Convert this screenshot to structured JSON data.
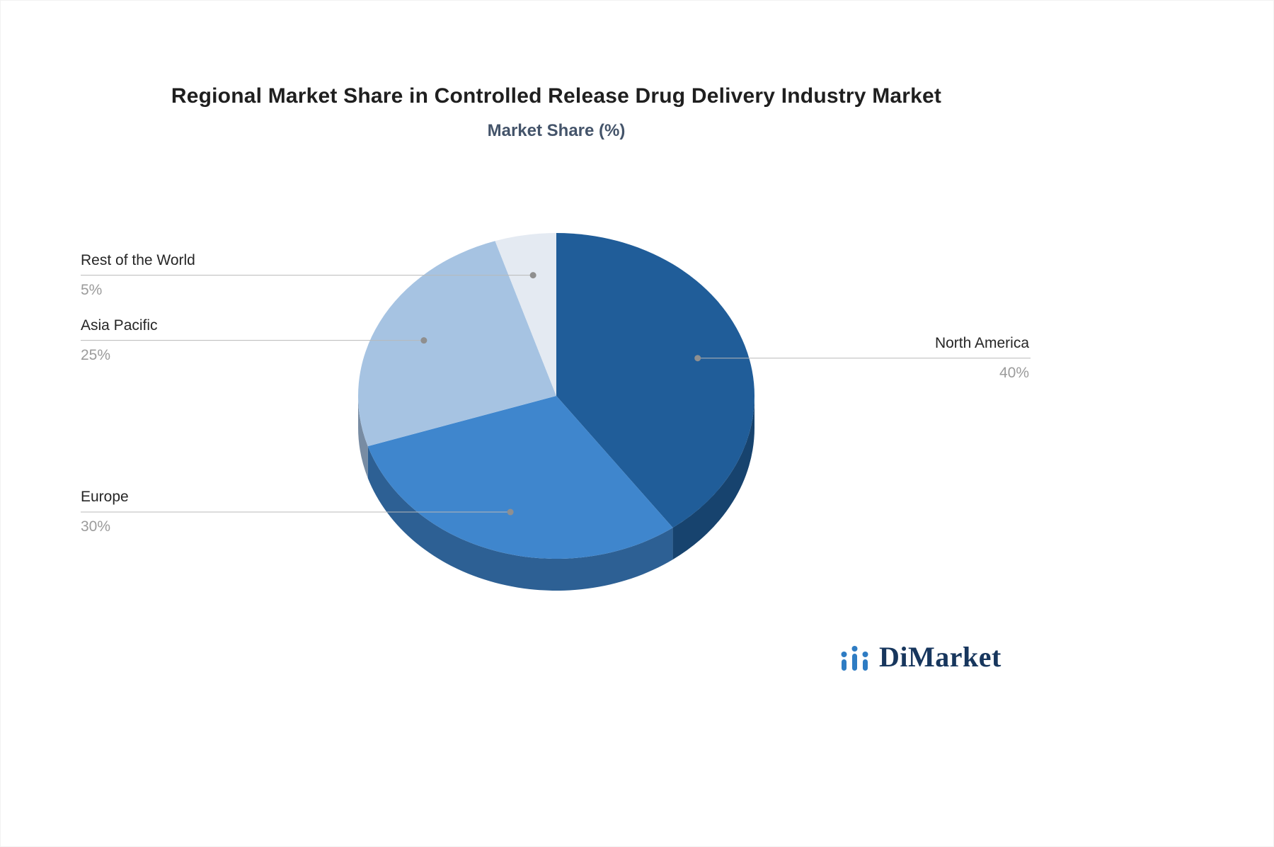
{
  "chart_data": {
    "type": "pie",
    "title": "Regional Market Share in Controlled Release Drug Delivery Industry Market",
    "subtitle": "Market Share (%)",
    "unit": "%",
    "direction": "clockwise",
    "start_angle_deg": 0,
    "labels_shown": true,
    "legend": "none",
    "slices": [
      {
        "label": "North America",
        "value": 40,
        "display": "40%",
        "color": "#205d99",
        "side": "right"
      },
      {
        "label": "Europe",
        "value": 30,
        "display": "30%",
        "color": "#3f86cd",
        "side": "left"
      },
      {
        "label": "Asia Pacific",
        "value": 25,
        "display": "25%",
        "color": "#a6c3e2",
        "side": "left"
      },
      {
        "label": "Rest of the World",
        "value": 5,
        "display": "5%",
        "color": "#e4eaf2",
        "side": "left"
      }
    ],
    "style": {
      "leader_line_color": "#b8b8b8",
      "leader_dot_color": "#8f8f8f",
      "label_name_color": "#262626",
      "label_value_color": "#9b9b9b",
      "subtitle_color": "#44546a"
    }
  },
  "branding": {
    "logo_text": "DiMarket",
    "logo_icon": "bar-chart-icon",
    "logo_text_color": "#17365d",
    "logo_icon_color": "#2e7cc3"
  }
}
